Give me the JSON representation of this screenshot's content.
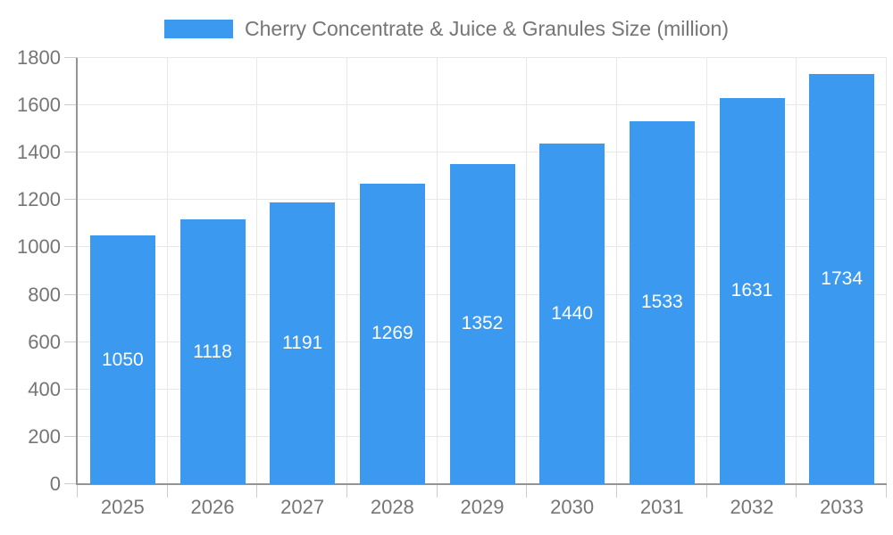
{
  "legend": {
    "label": "Cherry Concentrate & Juice & Granules Size (million)"
  },
  "chart_data": {
    "type": "bar",
    "title": "Cherry Concentrate & Juice & Granules Size (million)",
    "series_name": "Cherry Concentrate & Juice & Granules Size (million)",
    "categories": [
      "2025",
      "2026",
      "2027",
      "2028",
      "2029",
      "2030",
      "2031",
      "2032",
      "2033"
    ],
    "values": [
      1050,
      1118,
      1191,
      1269,
      1352,
      1440,
      1533,
      1631,
      1734
    ],
    "xlabel": "",
    "ylabel": "",
    "ylim": [
      0,
      1800
    ],
    "yticks": [
      0,
      200,
      400,
      600,
      800,
      1000,
      1200,
      1400,
      1600,
      1800
    ],
    "grid": true,
    "legend_position": "top-center",
    "value_labels_inside_bars": true
  },
  "colors": {
    "background": "#ffffff",
    "bar": "#3b99f0",
    "axis_line": "#949494",
    "gridline": "#e8e8e8",
    "tick": "#cccccc",
    "axis_text": "#757575",
    "legend_text": "#757575",
    "value_text": "#ffffff"
  }
}
